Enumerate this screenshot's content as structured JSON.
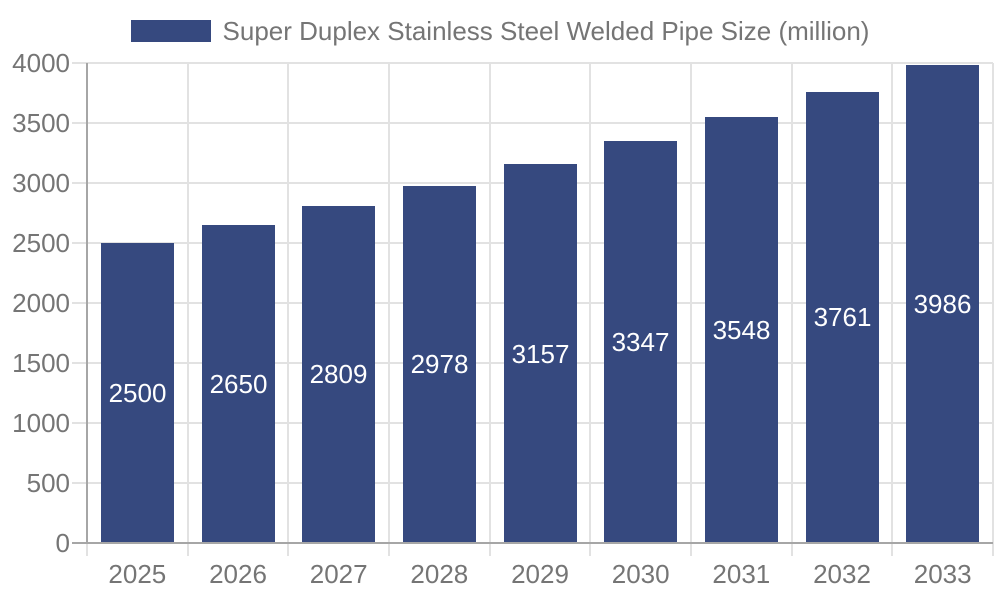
{
  "legend": {
    "label": "Super Duplex Stainless Steel Welded Pipe Size (million)"
  },
  "chart_data": {
    "type": "bar",
    "title": "Super Duplex Stainless Steel Welded Pipe Size (million)",
    "categories": [
      "2025",
      "2026",
      "2027",
      "2028",
      "2029",
      "2030",
      "2031",
      "2032",
      "2033"
    ],
    "series": [
      {
        "name": "Super Duplex Stainless Steel Welded Pipe Size (million)",
        "values": [
          2500,
          2650,
          2809,
          2978,
          3157,
          3347,
          3548,
          3761,
          3986
        ]
      }
    ],
    "xlabel": "",
    "ylabel": "",
    "ylim": [
      0,
      4000
    ],
    "yticks": [
      0,
      500,
      1000,
      1500,
      2000,
      2500,
      3000,
      3500,
      4000
    ],
    "grid": true,
    "legend_position": "top",
    "value_labels_position": "inside-center"
  },
  "colors": {
    "background": "#FFFFFF",
    "bar": "#36497F",
    "bar_label": "#FFFFFF",
    "axis_line": "#A6A6A6",
    "gridline": "#E2E2E2",
    "tick_label": "#757575",
    "legend_text": "#757575"
  }
}
